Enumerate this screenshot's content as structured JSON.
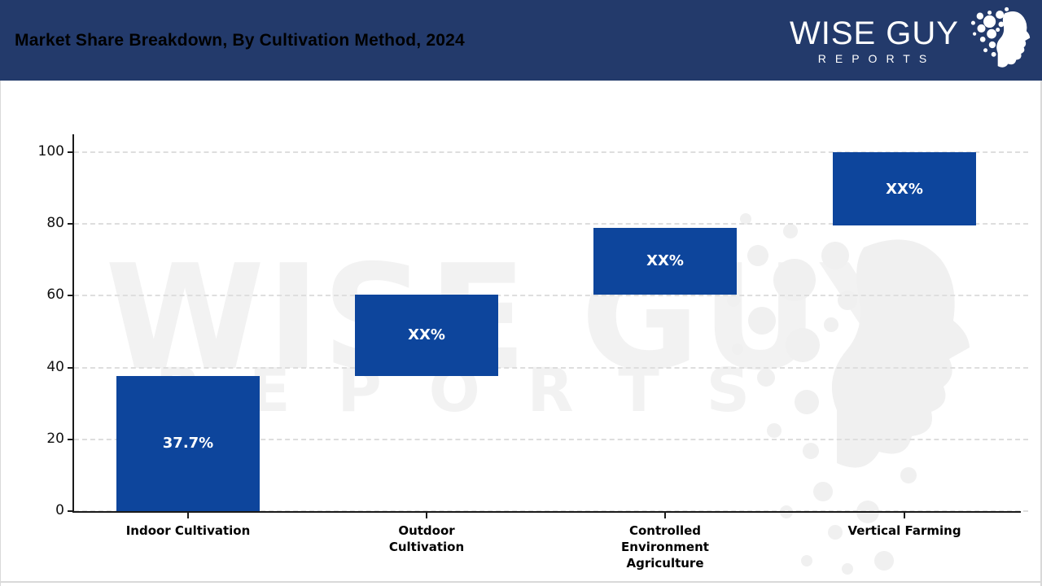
{
  "header": {
    "title": "Market Share Breakdown, By Cultivation Method, 2024",
    "logo": {
      "line1": "WISE GUY",
      "line2": "REPORTS"
    },
    "background_color": "#233a6b"
  },
  "watermark": {
    "line1": "WISE GUY",
    "line2": "REPORTS"
  },
  "chart_data": {
    "type": "bar",
    "subtype": "waterfall",
    "title": "Market Share Breakdown, By Cultivation Method, 2024",
    "categories": [
      "Indoor Cultivation",
      "Outdoor\nCultivation",
      "Controlled\nEnvironment\nAgriculture",
      "Vertical Farming"
    ],
    "segments": [
      {
        "category": "Indoor Cultivation",
        "start": 0,
        "end": 37.7,
        "label": "37.7%"
      },
      {
        "category": "Outdoor Cultivation",
        "start": 37.7,
        "end": 60.3,
        "label": "XX%"
      },
      {
        "category": "Controlled Environment Agriculture",
        "start": 60.3,
        "end": 79.0,
        "label": "XX%"
      },
      {
        "category": "Vertical Farming",
        "start": 79.5,
        "end": 100.0,
        "label": "XX%"
      }
    ],
    "bar_value_labels": [
      "37.7%",
      "XX%",
      "XX%",
      "XX%"
    ],
    "yticks": [
      0,
      20,
      40,
      60,
      80,
      100
    ],
    "ylim": [
      0,
      105
    ],
    "xlabel": "",
    "ylabel": "",
    "grid": "horizontal-dashed",
    "legend": "none",
    "bar_color": "#0d459c",
    "bar_label_color": "#ffffff"
  }
}
